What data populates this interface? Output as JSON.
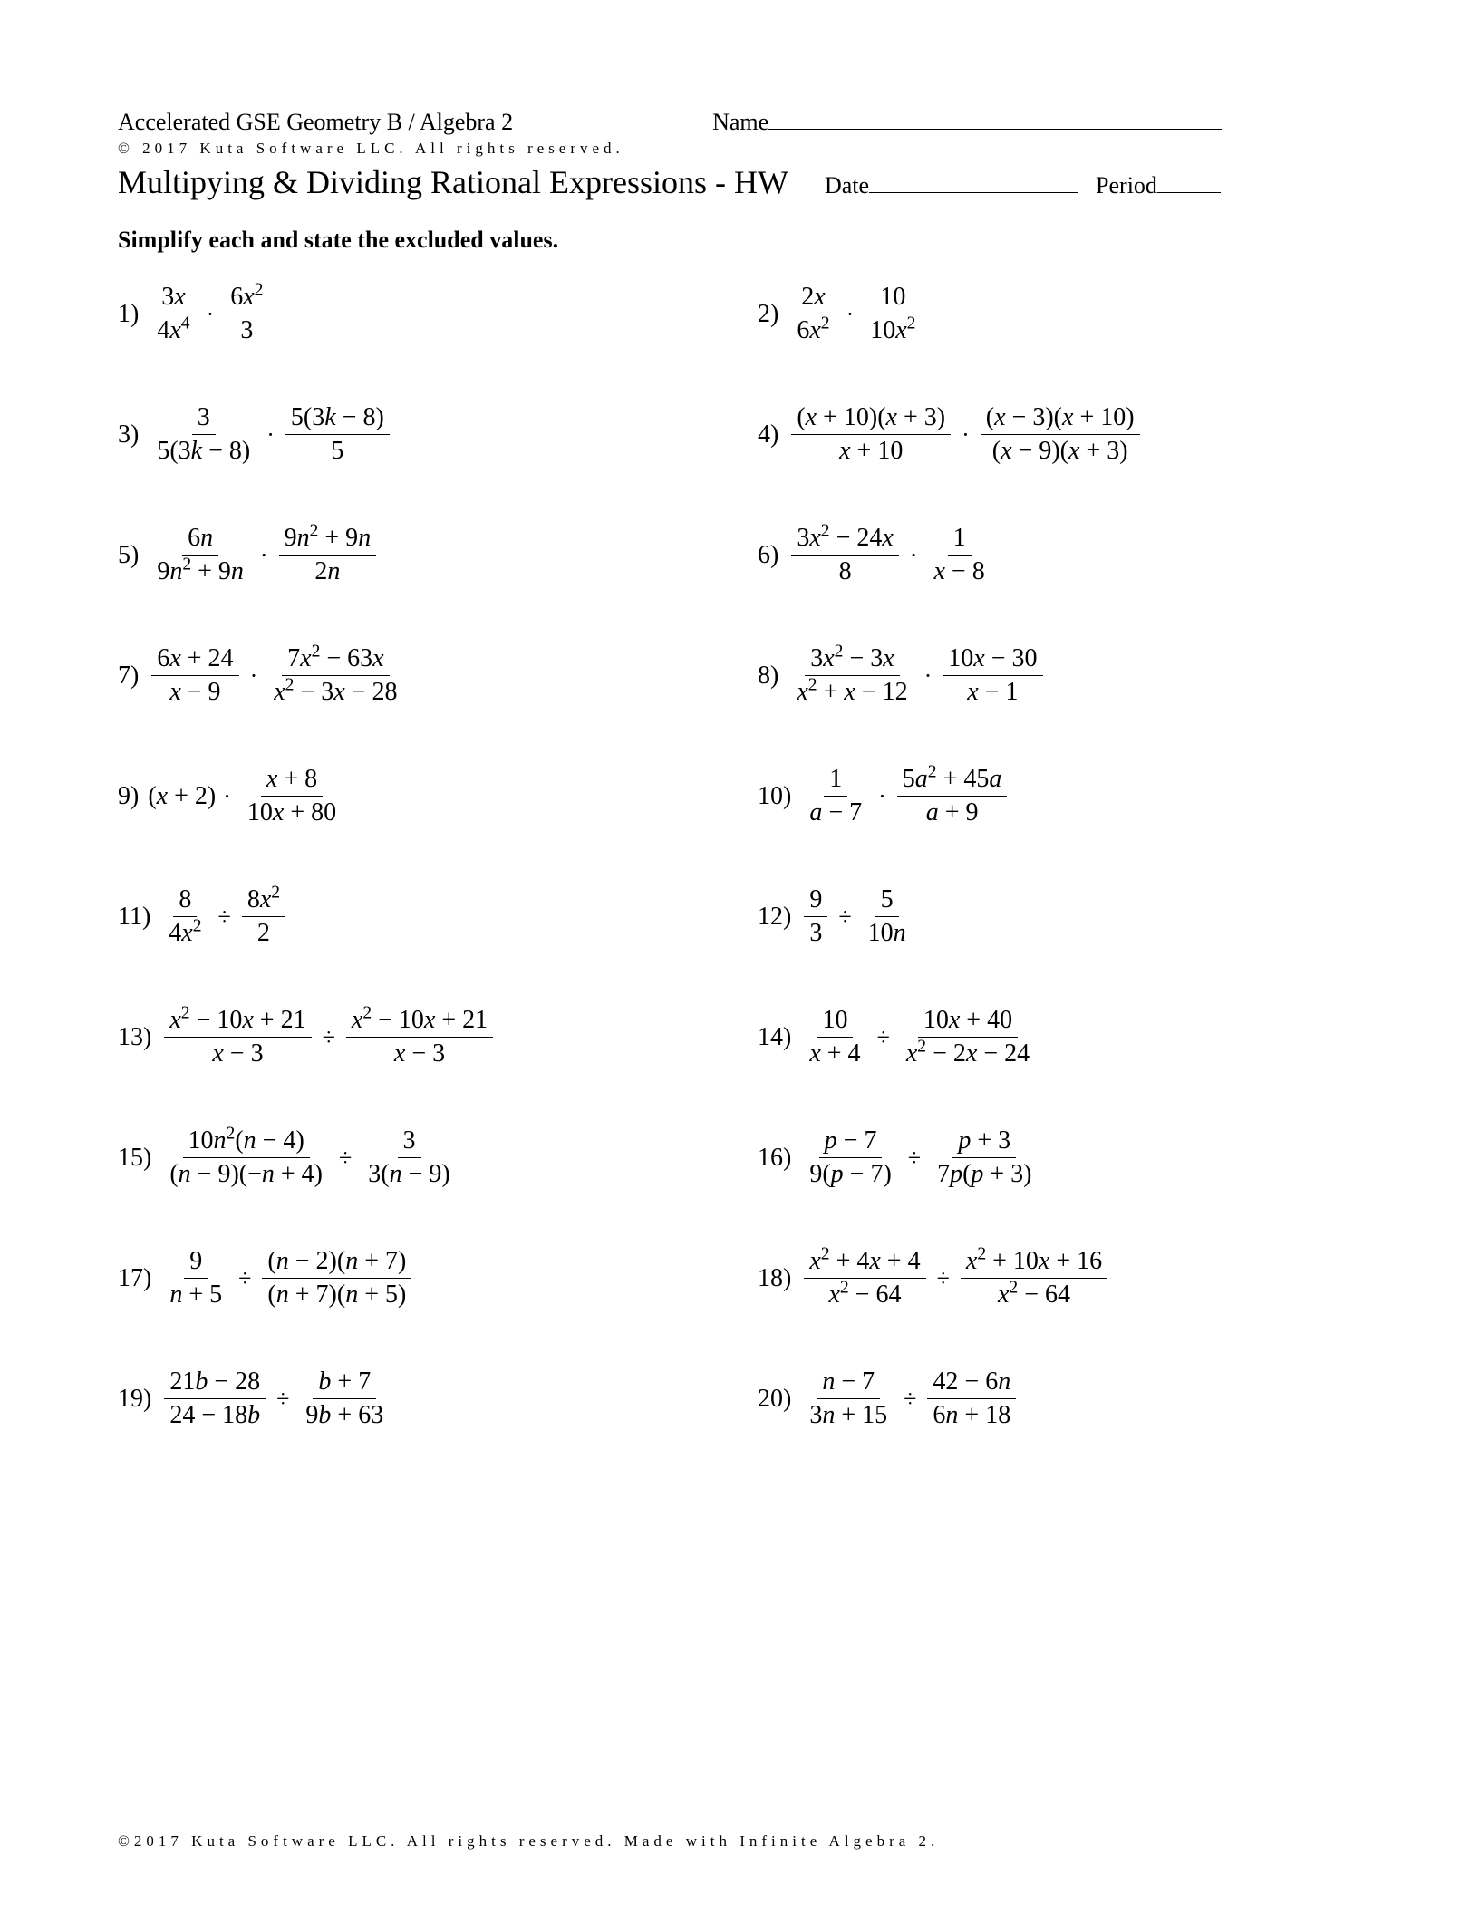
{
  "header": {
    "course": "Accelerated GSE Geometry B / Algebra 2",
    "name_label": "Name",
    "copyright_top": "© 2017 Kuta Software LLC. All rights reserved.",
    "title": "Multipying & Dividing Rational Expressions - HW",
    "date_label": "Date",
    "period_label": "Period"
  },
  "instructions": "Simplify each and state the excluded values.",
  "problems": [
    {
      "n": "1)",
      "f1n": "3<i>x</i>",
      "f1d": "4<i>x</i><sup>4</sup>",
      "op": "·",
      "f2n": "6<i>x</i><sup>2</sup>",
      "f2d": "3"
    },
    {
      "n": "2)",
      "f1n": "2<i>x</i>",
      "f1d": "6<i>x</i><sup>2</sup>",
      "op": "·",
      "f2n": "10",
      "f2d": "10<i>x</i><sup>2</sup>"
    },
    {
      "n": "3)",
      "f1n": "3",
      "f1d": "5(3<i>k</i> − 8)",
      "op": "·",
      "f2n": "5(3<i>k</i> − 8)",
      "f2d": "5"
    },
    {
      "n": "4)",
      "f1n": "(<i>x</i> + 10)(<i>x</i> + 3)",
      "f1d": "<i>x</i> + 10",
      "op": "·",
      "f2n": "(<i>x</i> − 3)(<i>x</i> + 10)",
      "f2d": "(<i>x</i> − 9)(<i>x</i> + 3)"
    },
    {
      "n": "5)",
      "f1n": "6<i>n</i>",
      "f1d": "9<i>n</i><sup>2</sup> + 9<i>n</i>",
      "op": "·",
      "f2n": "9<i>n</i><sup>2</sup> + 9<i>n</i>",
      "f2d": "2<i>n</i>"
    },
    {
      "n": "6)",
      "f1n": "3<i>x</i><sup>2</sup> − 24<i>x</i>",
      "f1d": "8",
      "op": "·",
      "f2n": "1",
      "f2d": "<i>x</i> − 8"
    },
    {
      "n": "7)",
      "f1n": "6<i>x</i> + 24",
      "f1d": "<i>x</i> − 9",
      "op": "·",
      "f2n": "7<i>x</i><sup>2</sup> − 63<i>x</i>",
      "f2d": "<i>x</i><sup>2</sup> − 3<i>x</i> − 28"
    },
    {
      "n": "8)",
      "f1n": "3<i>x</i><sup>2</sup> − 3<i>x</i>",
      "f1d": "<i>x</i><sup>2</sup> + <i>x</i> − 12",
      "op": "·",
      "f2n": "10<i>x</i> − 30",
      "f2d": "<i>x</i> − 1"
    },
    {
      "n": "9)",
      "pre": "(<i>x</i> + 2)",
      "op": "·",
      "f2n": "<i>x</i> + 8",
      "f2d": "10<i>x</i> + 80"
    },
    {
      "n": "10)",
      "f1n": "1",
      "f1d": "<i>a</i> − 7",
      "op": "·",
      "f2n": "5<i>a</i><sup>2</sup> + 45<i>a</i>",
      "f2d": "<i>a</i> + 9"
    },
    {
      "n": "11)",
      "f1n": "8",
      "f1d": "4<i>x</i><sup>2</sup>",
      "op": "÷",
      "f2n": "8<i>x</i><sup>2</sup>",
      "f2d": "2"
    },
    {
      "n": "12)",
      "f1n": "9",
      "f1d": "3",
      "op": "÷",
      "f2n": "5",
      "f2d": "10<i>n</i>"
    },
    {
      "n": "13)",
      "f1n": "<i>x</i><sup>2</sup> − 10<i>x</i> + 21",
      "f1d": "<i>x</i> − 3",
      "op": "÷",
      "f2n": "<i>x</i><sup>2</sup> − 10<i>x</i> + 21",
      "f2d": "<i>x</i> − 3"
    },
    {
      "n": "14)",
      "f1n": "10",
      "f1d": "<i>x</i> + 4",
      "op": "÷",
      "f2n": "10<i>x</i> + 40",
      "f2d": "<i>x</i><sup>2</sup> − 2<i>x</i> − 24"
    },
    {
      "n": "15)",
      "f1n": "10<i>n</i><sup>2</sup>(<i>n</i> − 4)",
      "f1d": "(<i>n</i> − 9)(−<i>n</i> + 4)",
      "op": "÷",
      "f2n": "3",
      "f2d": "3(<i>n</i> − 9)"
    },
    {
      "n": "16)",
      "f1n": "<i>p</i> − 7",
      "f1d": "9(<i>p</i> − 7)",
      "op": "÷",
      "f2n": "<i>p</i> + 3",
      "f2d": "7<i>p</i>(<i>p</i> + 3)"
    },
    {
      "n": "17)",
      "f1n": "9",
      "f1d": "<i>n</i> + 5",
      "op": "÷",
      "f2n": "(<i>n</i> − 2)(<i>n</i> + 7)",
      "f2d": "(<i>n</i> + 7)(<i>n</i> + 5)"
    },
    {
      "n": "18)",
      "f1n": "<i>x</i><sup>2</sup> + 4<i>x</i> + 4",
      "f1d": "<i>x</i><sup>2</sup> − 64",
      "op": "÷",
      "f2n": "<i>x</i><sup>2</sup> + 10<i>x</i> + 16",
      "f2d": "<i>x</i><sup>2</sup> − 64"
    },
    {
      "n": "19)",
      "f1n": "21<i>b</i> − 28",
      "f1d": "24 − 18<i>b</i>",
      "op": "÷",
      "f2n": "<i>b</i> + 7",
      "f2d": "9<i>b</i> + 63"
    },
    {
      "n": "20)",
      "f1n": "<i>n</i> − 7",
      "f1d": "3<i>n</i> + 15",
      "op": "÷",
      "f2n": "42 − 6<i>n</i>",
      "f2d": "6<i>n</i> + 18"
    }
  ],
  "footer": "©2017 Kuta Software LLC. All rights reserved. Made with Infinite Algebra 2."
}
